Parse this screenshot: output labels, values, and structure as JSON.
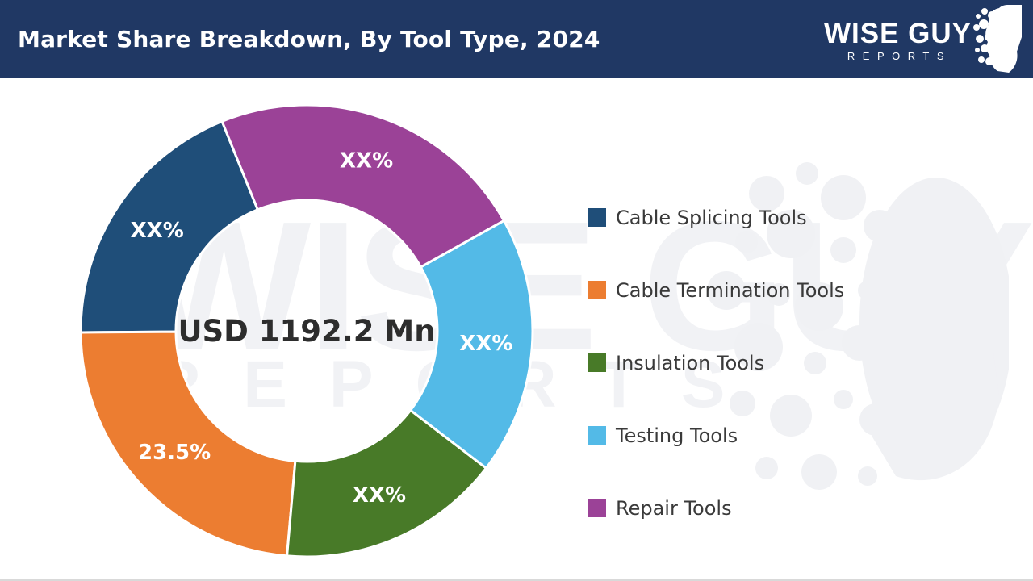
{
  "header": {
    "title": "Market Share Breakdown, By Tool Type, 2024",
    "logo": {
      "name": "WISE GUY",
      "sub": "REPORTS"
    }
  },
  "watermark": {
    "line1": "WISE GUY",
    "line2": "REPORTS"
  },
  "chart_data": {
    "type": "pie",
    "subtype": "donut",
    "title": "Market Share Breakdown, By Tool Type, 2024",
    "center_label": "USD 1192.2 Mn",
    "start_angle_deg": 112,
    "direction": "counterclockwise",
    "legend_position": "right",
    "slices": [
      {
        "label": "Cable Splicing Tools",
        "display_value": "XX%",
        "percent_est": 19.0,
        "color": "#1F4E79"
      },
      {
        "label": "Cable Termination Tools",
        "display_value": "23.5%",
        "percent_est": 23.5,
        "color": "#EC7D31"
      },
      {
        "label": "Insulation Tools",
        "display_value": "XX%",
        "percent_est": 16.0,
        "color": "#487A28"
      },
      {
        "label": "Testing Tools",
        "display_value": "XX%",
        "percent_est": 18.5,
        "color": "#53BAE7"
      },
      {
        "label": "Repair Tools",
        "display_value": "XX%",
        "percent_est": 23.0,
        "color": "#9B4297"
      }
    ]
  },
  "colors": {
    "header_bg": "#203864",
    "page_bg": "#ffffff",
    "center_text": "#2d2d2d",
    "legend_text": "#3a3a3a",
    "slice_label": "#ffffff",
    "watermark": "#f1f2f5",
    "bottom_rule": "#d9d9d9"
  }
}
